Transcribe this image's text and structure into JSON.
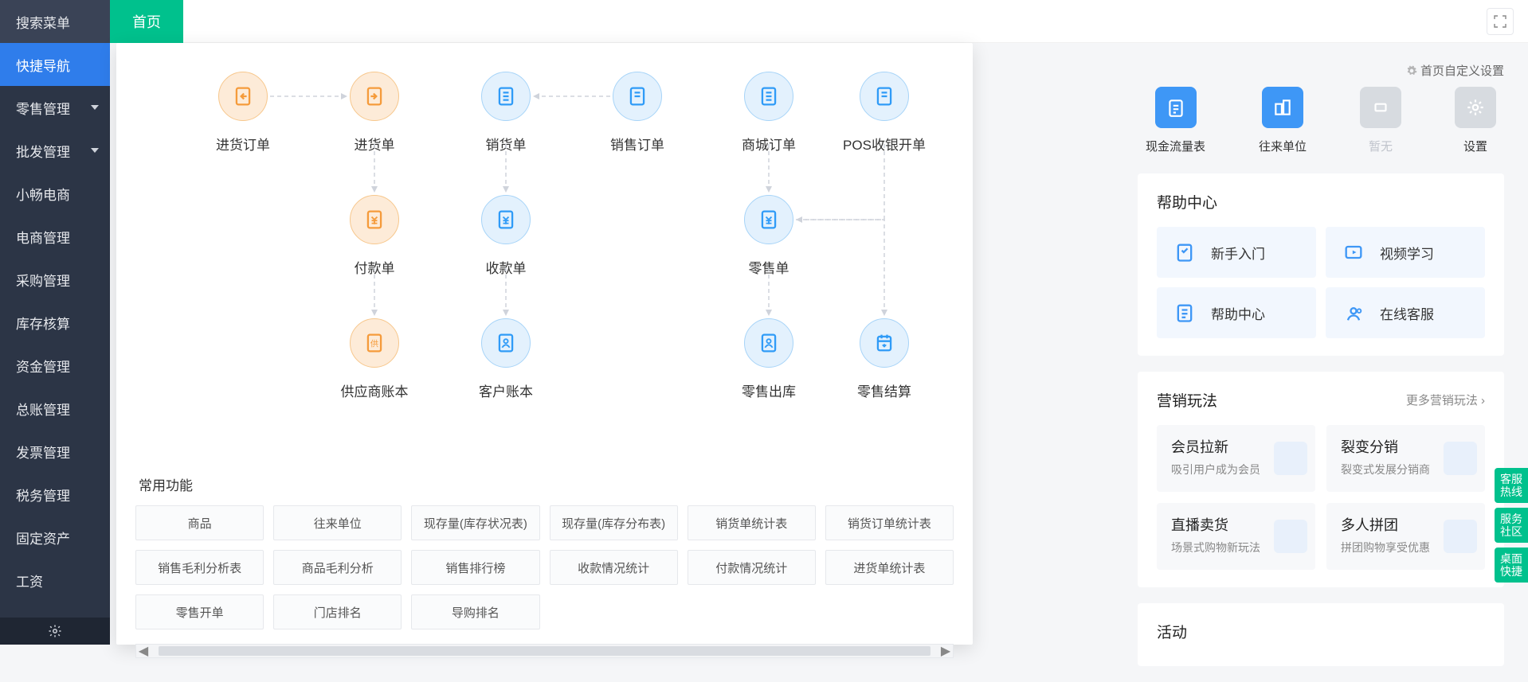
{
  "sidebar": {
    "items": [
      {
        "id": "search",
        "label": "搜索菜单",
        "active": false,
        "chev": false,
        "search": true
      },
      {
        "id": "quicknav",
        "label": "快捷导航",
        "active": true,
        "chev": false
      },
      {
        "id": "retail",
        "label": "零售管理",
        "active": false,
        "chev": true
      },
      {
        "id": "wholesale",
        "label": "批发管理",
        "active": false,
        "chev": true
      },
      {
        "id": "xiaochang",
        "label": "小畅电商",
        "active": false,
        "chev": false
      },
      {
        "id": "ecom",
        "label": "电商管理",
        "active": false,
        "chev": false
      },
      {
        "id": "purchase",
        "label": "采购管理",
        "active": false,
        "chev": false
      },
      {
        "id": "inventory",
        "label": "库存核算",
        "active": false,
        "chev": false
      },
      {
        "id": "funds",
        "label": "资金管理",
        "active": false,
        "chev": false
      },
      {
        "id": "ledger",
        "label": "总账管理",
        "active": false,
        "chev": false
      },
      {
        "id": "invoice",
        "label": "发票管理",
        "active": false,
        "chev": false
      },
      {
        "id": "tax",
        "label": "税务管理",
        "active": false,
        "chev": false
      },
      {
        "id": "assets",
        "label": "固定资产",
        "active": false,
        "chev": false
      },
      {
        "id": "salary",
        "label": "工资",
        "active": false,
        "chev": false
      }
    ]
  },
  "tab": {
    "label": "首页"
  },
  "settingsLink": "首页自定义设置",
  "iconTiles": [
    {
      "id": "cashflow",
      "label": "现金流量表",
      "colorClass": "blue",
      "disabled": false
    },
    {
      "id": "units",
      "label": "往来单位",
      "colorClass": "blue",
      "disabled": false
    },
    {
      "id": "none",
      "label": "暂无",
      "colorClass": "grey",
      "disabled": true
    },
    {
      "id": "settings",
      "label": "设置",
      "colorClass": "grey",
      "disabled": false
    }
  ],
  "helpPanel": {
    "title": "帮助中心",
    "items": [
      {
        "id": "newbie",
        "label": "新手入门"
      },
      {
        "id": "video",
        "label": "视频学习"
      },
      {
        "id": "helpcenter",
        "label": "帮助中心"
      },
      {
        "id": "service",
        "label": "在线客服"
      }
    ]
  },
  "marketPanel": {
    "title": "营销玩法",
    "more": "更多营销玩法",
    "items": [
      {
        "id": "member",
        "t": "会员拉新",
        "s": "吸引用户成为会员"
      },
      {
        "id": "fission",
        "t": "裂变分销",
        "s": "裂变式发展分销商"
      },
      {
        "id": "live",
        "t": "直播卖货",
        "s": "场景式购物新玩法"
      },
      {
        "id": "group",
        "t": "多人拼团",
        "s": "拼团购物享受优惠"
      }
    ]
  },
  "activityPanel": {
    "title": "活动"
  },
  "sideTabs": [
    {
      "id": "hotline",
      "label": "客服热线"
    },
    {
      "id": "community",
      "label": "服务社区"
    },
    {
      "id": "desktop",
      "label": "桌面快捷"
    }
  ],
  "flow": {
    "cols": [
      60,
      225,
      390,
      555,
      720,
      865
    ],
    "rows": [
      0,
      155,
      310
    ],
    "nodes": [
      {
        "id": "purchase-order",
        "label": "进货订单",
        "color": "orange",
        "col": 0,
        "row": 0,
        "icon": "doc-left"
      },
      {
        "id": "purchase-in",
        "label": "进货单",
        "color": "orange",
        "col": 1,
        "row": 0,
        "icon": "doc-right"
      },
      {
        "id": "sales-out",
        "label": "销货单",
        "color": "blue",
        "col": 2,
        "row": 0,
        "icon": "list"
      },
      {
        "id": "sales-order",
        "label": "销售订单",
        "color": "blue",
        "col": 3,
        "row": 0,
        "icon": "doc"
      },
      {
        "id": "mall-order",
        "label": "商城订单",
        "color": "blue",
        "col": 4,
        "row": 0,
        "icon": "list"
      },
      {
        "id": "pos",
        "label": "POS收银开单",
        "color": "blue",
        "col": 5,
        "row": 0,
        "icon": "doc"
      },
      {
        "id": "payment",
        "label": "付款单",
        "color": "orange",
        "col": 1,
        "row": 1,
        "icon": "money"
      },
      {
        "id": "receipt",
        "label": "收款单",
        "color": "blue",
        "col": 2,
        "row": 1,
        "icon": "money"
      },
      {
        "id": "retail-sheet",
        "label": "零售单",
        "color": "blue",
        "col": 4,
        "row": 1,
        "icon": "money"
      },
      {
        "id": "supplier-book",
        "label": "供应商账本",
        "color": "orange",
        "col": 1,
        "row": 2,
        "icon": "supply"
      },
      {
        "id": "customer-book",
        "label": "客户账本",
        "color": "blue",
        "col": 2,
        "row": 2,
        "icon": "person"
      },
      {
        "id": "retail-out",
        "label": "零售出库",
        "color": "blue",
        "col": 4,
        "row": 2,
        "icon": "person"
      },
      {
        "id": "retail-settle",
        "label": "零售结算",
        "color": "blue",
        "col": 5,
        "row": 2,
        "icon": "calendar"
      }
    ],
    "arrows": [
      {
        "from": "purchase-order",
        "to": "purchase-in",
        "dir": "h"
      },
      {
        "from": "sales-order",
        "to": "sales-out",
        "dir": "h-rev"
      },
      {
        "from": "mall-order",
        "to": "sales-order",
        "dir": "h-rev-skip"
      },
      {
        "from": "purchase-in",
        "to": "payment",
        "dir": "v"
      },
      {
        "from": "sales-out",
        "to": "receipt",
        "dir": "v"
      },
      {
        "from": "mall-order",
        "to": "retail-sheet",
        "dir": "v"
      },
      {
        "from": "pos",
        "to": "retail-sheet",
        "dir": "elbow-dl"
      },
      {
        "from": "payment",
        "to": "supplier-book",
        "dir": "v"
      },
      {
        "from": "receipt",
        "to": "customer-book",
        "dir": "v"
      },
      {
        "from": "retail-sheet",
        "to": "retail-out",
        "dir": "v"
      },
      {
        "from": "retail-sheet",
        "to": "retail-settle",
        "dir": "elbow-dr"
      }
    ]
  },
  "commonTitle": "常用功能",
  "commonBtns": [
    "商品",
    "往来单位",
    "现存量(库存状况表)",
    "现存量(库存分布表)",
    "销货单统计表",
    "销货订单统计表",
    "销售毛利分析表",
    "商品毛利分析",
    "销售排行榜",
    "收款情况统计",
    "付款情况统计",
    "进货单统计表",
    "零售开单",
    "门店排名",
    "导购排名"
  ],
  "colors": {
    "sidebarBg": "#2c3546",
    "accentGreen": "#00C18D",
    "accentBlue": "#2F7DEB",
    "nodeOrangeBg": "#FDEBD8",
    "nodeOrangeBorder": "#F7C78C",
    "nodeOrangeIcon": "#F59B3B",
    "nodeBlueBg": "#E3F1FD",
    "nodeBlueBorder": "#A7D4F8",
    "nodeBlueIcon": "#2F9BF7",
    "tileBlue": "#3E97F6",
    "tileGrey": "#D7DBE0",
    "helpItemBg": "#F2F7FE",
    "marketItemBg": "#F7F8FA"
  }
}
